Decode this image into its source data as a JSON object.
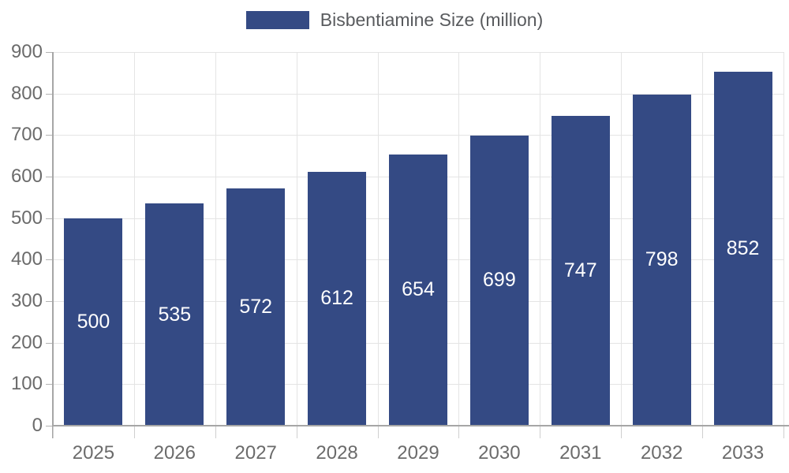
{
  "legend": {
    "label": "Bisbentiamine Size (million)"
  },
  "chart_data": {
    "type": "bar",
    "title": "Bisbentiamine Size (million)",
    "series_name": "Bisbentiamine Size (million)",
    "categories": [
      "2025",
      "2026",
      "2027",
      "2028",
      "2029",
      "2030",
      "2031",
      "2032",
      "2033"
    ],
    "values": [
      500,
      535,
      572,
      612,
      654,
      699,
      747,
      798,
      852
    ],
    "xlabel": "",
    "ylabel": "",
    "ylim": [
      0,
      900
    ],
    "ytick_step": 100,
    "yticks": [
      0,
      100,
      200,
      300,
      400,
      500,
      600,
      700,
      800,
      900
    ],
    "grid": true,
    "legend_position": "top",
    "value_labels": "inside-center",
    "colors": {
      "bar": "#344a84",
      "grid": "#e4e4e4",
      "axis": "#a6a6a6",
      "tick": "#b3b3b3",
      "tick_label": "#6b6b6b",
      "value_label": "#ffffff",
      "legend_text": "#595b5e"
    }
  }
}
